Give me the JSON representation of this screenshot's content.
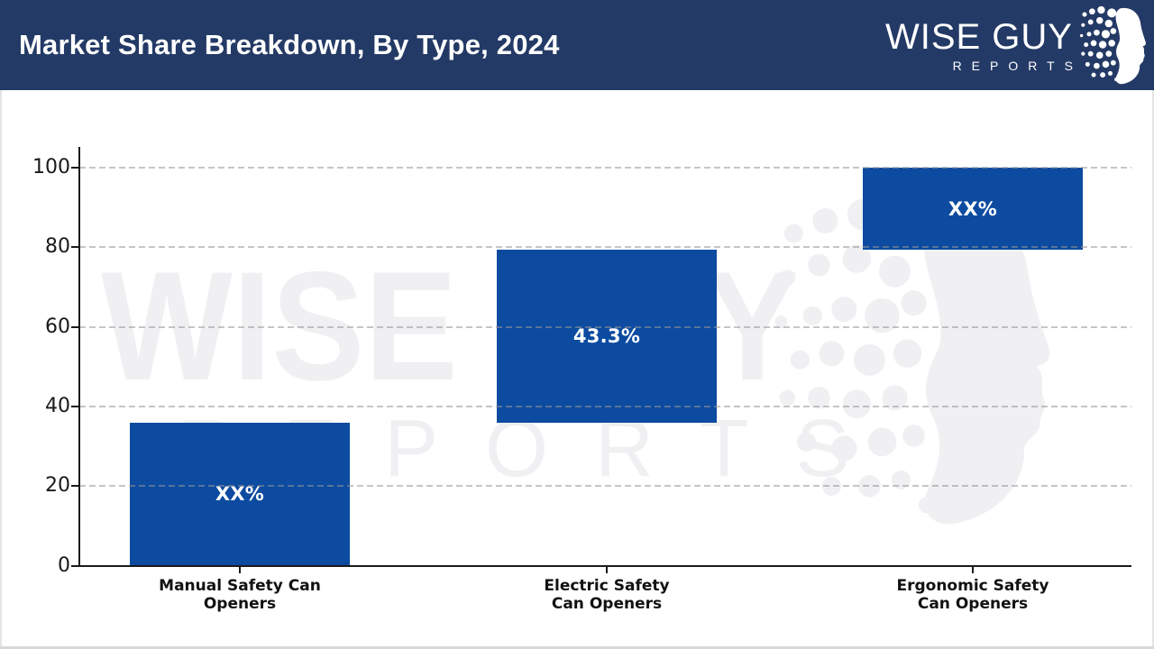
{
  "header": {
    "title": "Market Share Breakdown, By Type, 2024",
    "logo": {
      "line1": "WISE GUY",
      "line2": "REPORTS"
    }
  },
  "watermark": {
    "line1": "WISE GUY",
    "line2": "REPORTS"
  },
  "chart_data": {
    "type": "bar",
    "subtype": "waterfall",
    "title": "Market Share Breakdown, By Type, 2024",
    "categories": [
      [
        "Manual Safety Can",
        "Openers"
      ],
      [
        "Electric Safety",
        "Can Openers"
      ],
      [
        "Ergonomic Safety",
        "Can Openers"
      ]
    ],
    "bars": [
      {
        "start": 0,
        "end": 36,
        "height": 36,
        "label": "XX%"
      },
      {
        "start": 36,
        "end": 79.3,
        "height": 43.3,
        "label": "43.3%"
      },
      {
        "start": 79.3,
        "end": 100,
        "height": 20.7,
        "label": "XX%"
      }
    ],
    "bar_labels": [
      "XX%",
      "43.3%",
      "XX%"
    ],
    "y_ticks": [
      0,
      20,
      40,
      60,
      80,
      100
    ],
    "ylim": [
      0,
      105
    ],
    "grid": "horizontal dashed, drawn above bars",
    "legend": "none",
    "xlabel": "",
    "ylabel": "",
    "colors": {
      "bar": "#0C4BA0",
      "header_bg": "#243A66",
      "bar_value_text": "#ffffff",
      "axis_text": "#1a1a1a",
      "gridline": "rgba(150,150,150,0.55)",
      "watermark": "#f0f0f3"
    }
  }
}
